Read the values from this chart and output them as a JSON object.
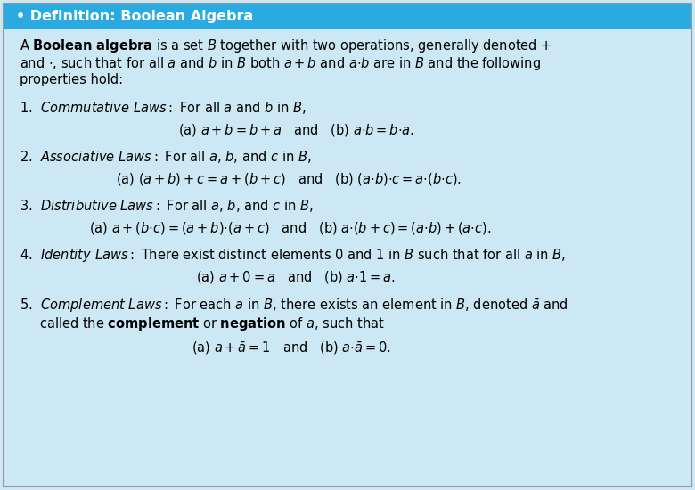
{
  "header_bg": "#29ABE2",
  "body_bg": "#CCE8F4",
  "border_color": "#999999",
  "header_text": "• Definition: Boolean Algebra",
  "header_text_color": "#FFFFFF",
  "header_font_size": 11.5,
  "body_font_size": 10.5,
  "fig_width": 7.8,
  "fig_height": 5.5
}
